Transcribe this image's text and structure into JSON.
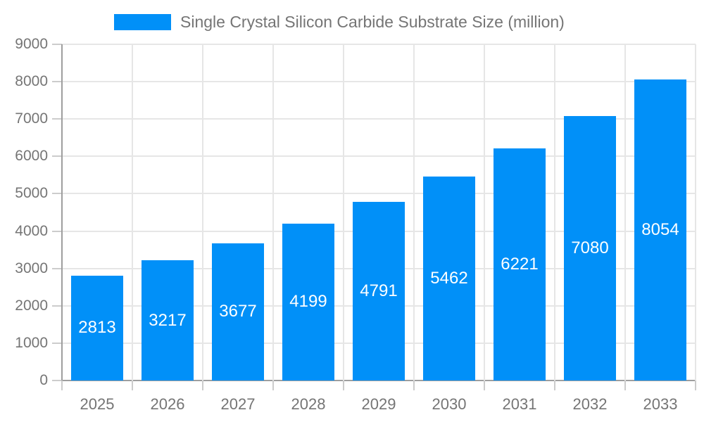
{
  "chart_data": {
    "type": "bar",
    "title": "Single Crystal Silicon Carbide Substrate Size (million)",
    "categories": [
      "2025",
      "2026",
      "2027",
      "2028",
      "2029",
      "2030",
      "2031",
      "2032",
      "2033"
    ],
    "values": [
      2813,
      3217,
      3677,
      4199,
      4791,
      5462,
      6221,
      7080,
      8054
    ],
    "xlabel": "",
    "ylabel": "",
    "ylim": [
      0,
      9000
    ],
    "y_step": 1000,
    "y_tick_labels": [
      "0",
      "1000",
      "2000",
      "3000",
      "4000",
      "5000",
      "6000",
      "7000",
      "8000",
      "9000"
    ],
    "grid": true,
    "legend_position": "top",
    "value_labels_shown": true,
    "colors": {
      "bar": "#0190f8",
      "value_label": "#ffffff",
      "axis_text": "#757575",
      "gridline": "#e6e6e6",
      "axis_line": "#9e9e9e",
      "tick": "#cccccc",
      "background": "#ffffff"
    }
  }
}
